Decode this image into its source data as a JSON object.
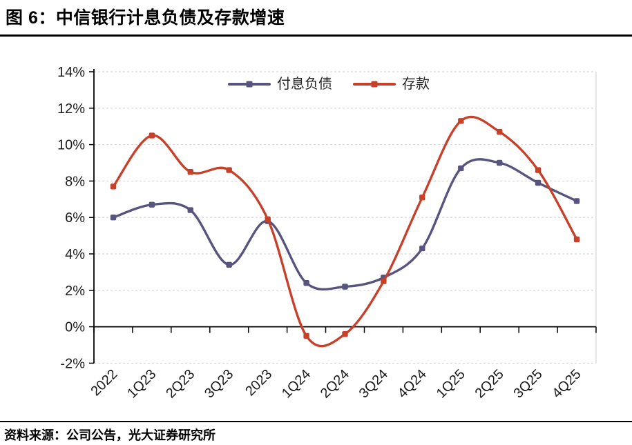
{
  "page": {
    "title": "图 6：中信银行计息负债及存款增速",
    "source": "资料来源：公司公告，光大证券研究所"
  },
  "chart_data": {
    "type": "line",
    "title": "图 6：中信银行计息负债及存款增速",
    "categories": [
      "2022",
      "1Q23",
      "2Q23",
      "3Q23",
      "2023",
      "1Q24",
      "2Q24",
      "3Q24",
      "4Q24",
      "1Q25",
      "2Q25",
      "3Q25",
      "4Q25"
    ],
    "series": [
      {
        "name": "付息负债",
        "color": "#57547F",
        "values": [
          6.0,
          6.7,
          6.4,
          3.4,
          5.8,
          2.4,
          2.2,
          2.7,
          4.3,
          8.7,
          9.0,
          7.9,
          6.9
        ]
      },
      {
        "name": "存款",
        "color": "#C7402A",
        "values": [
          7.7,
          10.5,
          8.5,
          8.6,
          5.9,
          -0.5,
          -0.4,
          2.5,
          7.1,
          11.3,
          10.7,
          8.6,
          4.8
        ]
      }
    ],
    "xlabel": "",
    "ylabel": "",
    "ylim": [
      -2,
      14
    ],
    "y_tick_step": 2,
    "y_tick_labels": [
      "14%",
      "12%",
      "10%",
      "8%",
      "6%",
      "4%",
      "2%",
      "0%",
      "-2%"
    ],
    "x_label_rotation": -45,
    "grid": "horizontal-dashed",
    "grid_color": "#D9D9D9",
    "axis_color": "#000000",
    "tick_label_color": "#1A1A1A",
    "legend_position": "top-center",
    "smooth": true,
    "markers": "square"
  }
}
